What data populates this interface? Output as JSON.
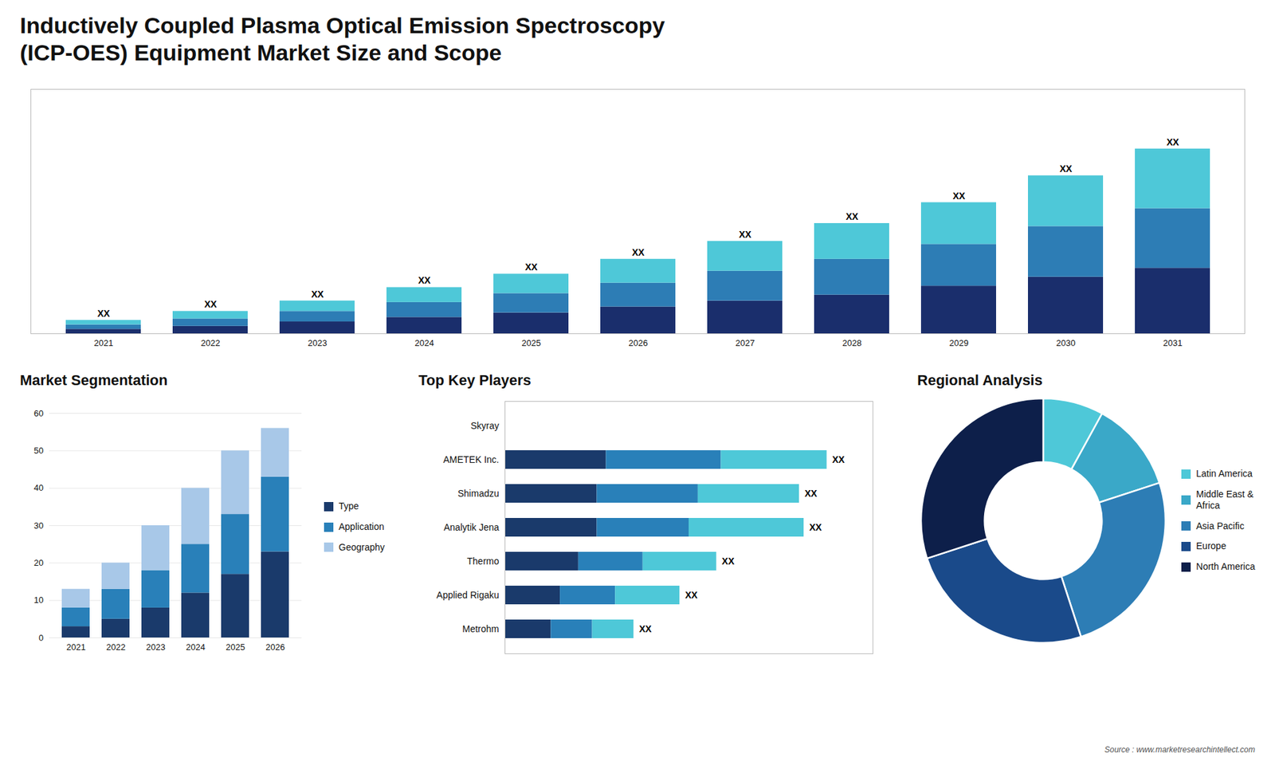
{
  "title": "Inductively Coupled Plasma Optical Emission Spectroscopy\n(ICP-OES) Equipment Market Size and Scope",
  "caption": "Source : www.marketresearchintellect.com",
  "chart_data": [
    {
      "type": "bar",
      "stacked": true,
      "categories": [
        "2021",
        "2022",
        "2023",
        "2024",
        "2025",
        "2026",
        "2027",
        "2028",
        "2029",
        "2030",
        "2031"
      ],
      "series": [
        {
          "color": "#1a2e6c",
          "values": [
            1.5,
            2.5,
            4,
            5.5,
            7,
            9,
            11,
            13,
            16,
            19,
            22
          ]
        },
        {
          "color": "#2d7db5",
          "values": [
            1.5,
            2.5,
            3.5,
            5,
            6.5,
            8,
            10,
            12,
            14,
            17,
            20
          ]
        },
        {
          "color": "#4ec8d8",
          "values": [
            1.5,
            2.5,
            3.5,
            5,
            6.5,
            8,
            10,
            12,
            14,
            17,
            20
          ]
        }
      ],
      "ylim": [
        0,
        82
      ],
      "tick_labels": "x",
      "annotations": [
        {
          "category": "2021",
          "text": "XX"
        },
        {
          "category": "2022",
          "text": "XX"
        },
        {
          "category": "2023",
          "text": "XX"
        },
        {
          "category": "2024",
          "text": "XX"
        },
        {
          "category": "2025",
          "text": "XX"
        },
        {
          "category": "2026",
          "text": "XX"
        },
        {
          "category": "2027",
          "text": "XX"
        },
        {
          "category": "2028",
          "text": "XX"
        },
        {
          "category": "2029",
          "text": "XX"
        },
        {
          "category": "2030",
          "text": "XX"
        },
        {
          "category": "2031",
          "text": "XX"
        }
      ]
    },
    {
      "type": "bar",
      "stacked": true,
      "title": "Market Segmentation",
      "categories": [
        "2021",
        "2022",
        "2023",
        "2024",
        "2025",
        "2026"
      ],
      "series": [
        {
          "name": "Type",
          "color": "#1a3a6b",
          "values": [
            3,
            5,
            8,
            12,
            17,
            23
          ]
        },
        {
          "name": "Application",
          "color": "#2980b9",
          "values": [
            5,
            8,
            10,
            13,
            16,
            20
          ]
        },
        {
          "name": "Geography",
          "color": "#a8c8e8",
          "values": [
            5,
            7,
            12,
            15,
            17,
            13
          ]
        }
      ],
      "ylim": [
        0,
        60
      ],
      "yticks": [
        0,
        10,
        20,
        30,
        40,
        50,
        60
      ],
      "grid": true,
      "legend": "right"
    },
    {
      "type": "bar",
      "stacked": true,
      "orientation": "horizontal",
      "title": "Top Key Players",
      "categories": [
        "Skyray",
        "AMETEK Inc.",
        "Shimadzu",
        "Analytik Jena",
        "Thermo",
        "Applied Rigaku",
        "Metrohm"
      ],
      "series": [
        {
          "color": "#1a3a6b",
          "values": [
            0,
            22,
            20,
            20,
            16,
            12,
            10
          ]
        },
        {
          "color": "#2980b9",
          "values": [
            0,
            25,
            22,
            20,
            14,
            12,
            9
          ]
        },
        {
          "color": "#4ec8d8",
          "values": [
            0,
            23,
            22,
            25,
            16,
            14,
            9
          ]
        }
      ],
      "xlim": [
        0,
        80
      ],
      "tick_labels": "y",
      "annotations": [
        {
          "category": "AMETEK Inc.",
          "text": "XX"
        },
        {
          "category": "Shimadzu",
          "text": "XX"
        },
        {
          "category": "Analytik Jena",
          "text": "XX"
        },
        {
          "category": "Thermo",
          "text": "XX"
        },
        {
          "category": "Applied Rigaku",
          "text": "XX"
        },
        {
          "category": "Metrohm",
          "text": "XX"
        }
      ]
    },
    {
      "type": "pie",
      "title": "Regional Analysis",
      "categories": [
        "Latin America",
        "Middle East &\nAfrica",
        "Asia Pacific",
        "Europe",
        "North America"
      ],
      "values": [
        8,
        12,
        25,
        25,
        30
      ],
      "colors": [
        "#4ec8d8",
        "#3aa8c8",
        "#2d7db5",
        "#1a4a8a",
        "#0d1f4a"
      ],
      "legend": "right"
    }
  ]
}
